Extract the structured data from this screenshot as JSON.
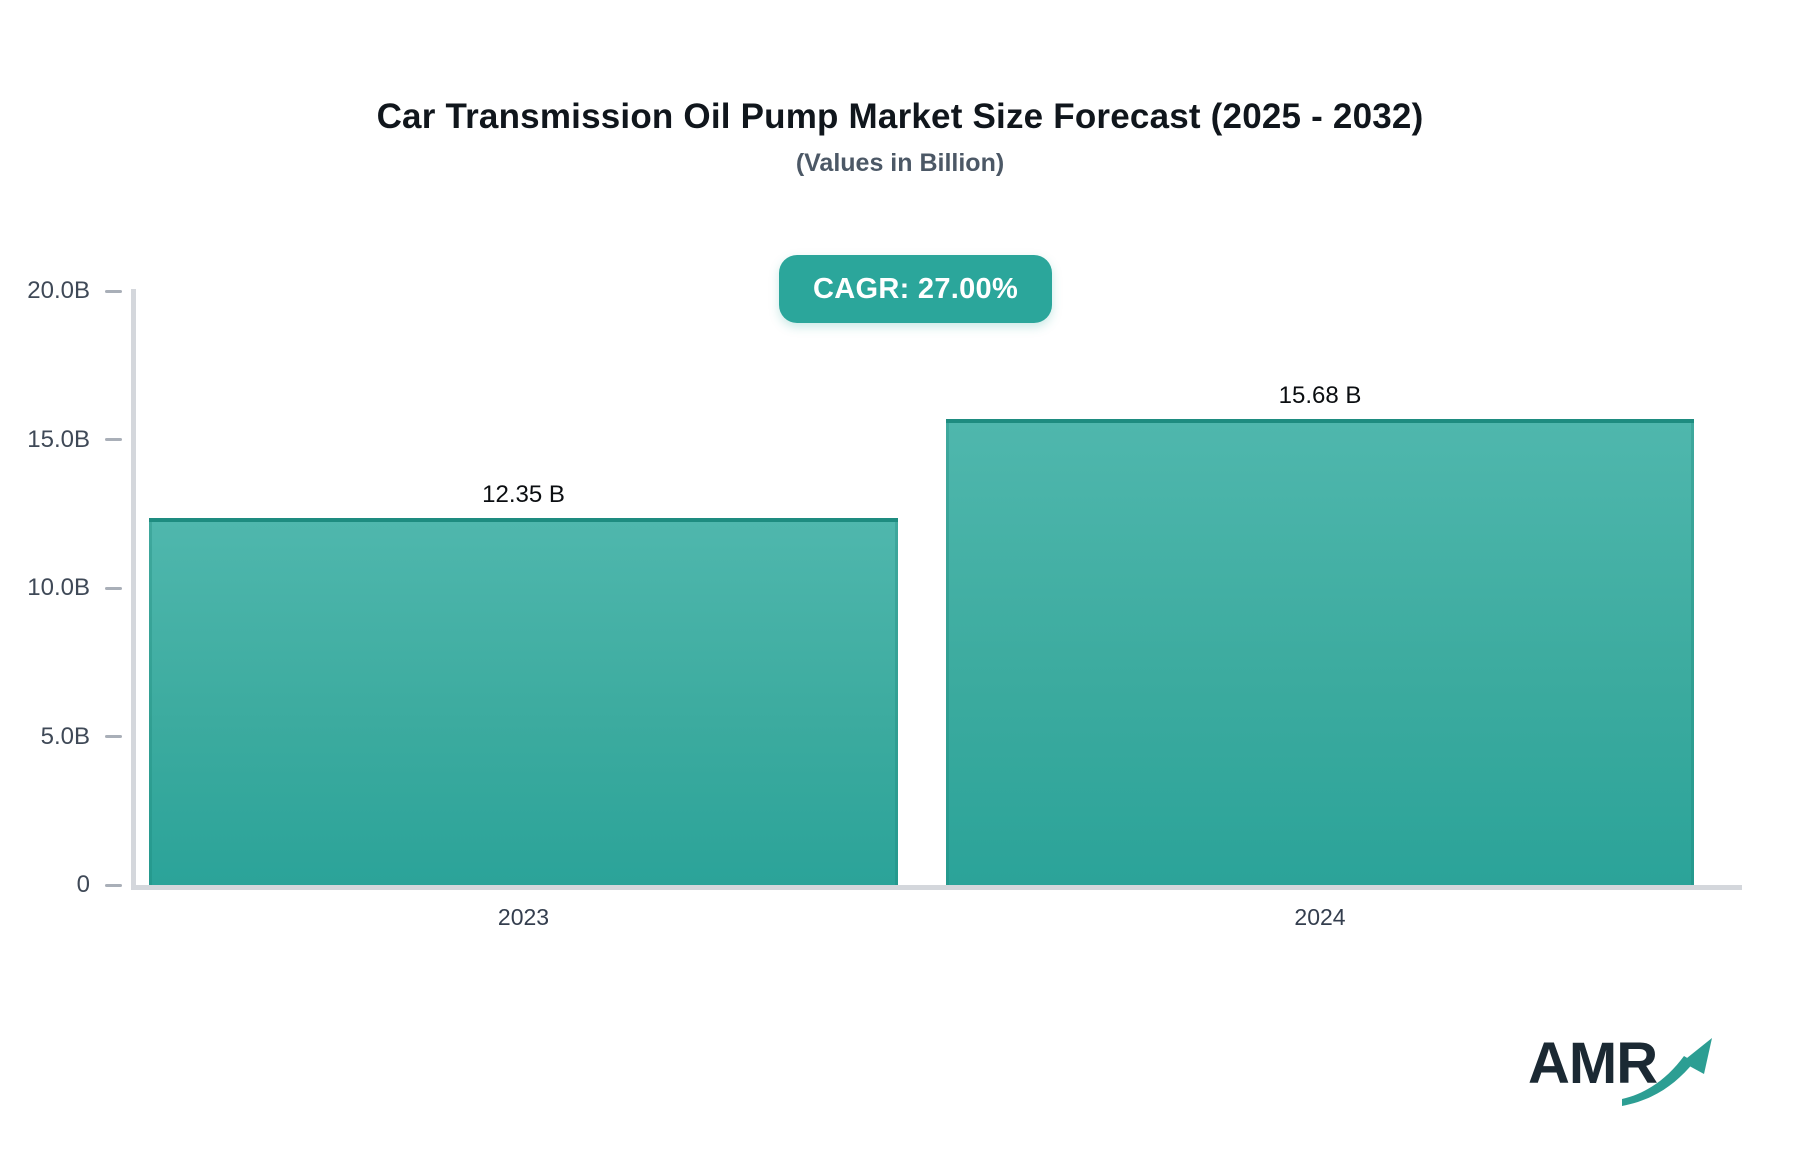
{
  "header": {
    "title": "Car Transmission Oil Pump Market Size Forecast (2025 - 2032)",
    "subtitle": "(Values in Billion)",
    "cagr_label": "CAGR: 27.00%"
  },
  "chart_data": {
    "type": "bar",
    "title": "Car Transmission Oil Pump Market Size Forecast (2025 - 2032)",
    "subtitle": "(Values in Billion)",
    "cagr_percent": "27.00%",
    "categories": [
      "2023",
      "2024"
    ],
    "values": [
      12.35,
      15.68
    ],
    "value_labels": [
      "12.35 B",
      "15.68 B"
    ],
    "unit": "Billion",
    "xlabel": "",
    "ylabel": "",
    "ylim": [
      0,
      20
    ],
    "yticks": [
      {
        "value": 20,
        "label": "20.0B"
      },
      {
        "value": 15,
        "label": "15.0B"
      },
      {
        "value": 10,
        "label": "10.0B"
      },
      {
        "value": 5,
        "label": "5.0B"
      },
      {
        "value": 0,
        "label": "0"
      }
    ],
    "grid": false,
    "legend": false,
    "colors": {
      "bar_gradient_top": "#4fb7ad",
      "bar_gradient_bottom": "#2ba399",
      "bar_top_stroke": "#1e8c80",
      "badge_background": "#2ba69b",
      "axis_line": "#d4d7dc",
      "tick_mark": "#a9afb8",
      "axis_label": "#3f4957",
      "title_text": "#10161c",
      "subtitle_text": "#4c5866"
    }
  },
  "branding": {
    "logo_text": "AMR",
    "logo_text_color": "#1b2933",
    "logo_arrow_color": "#2c9e93"
  }
}
